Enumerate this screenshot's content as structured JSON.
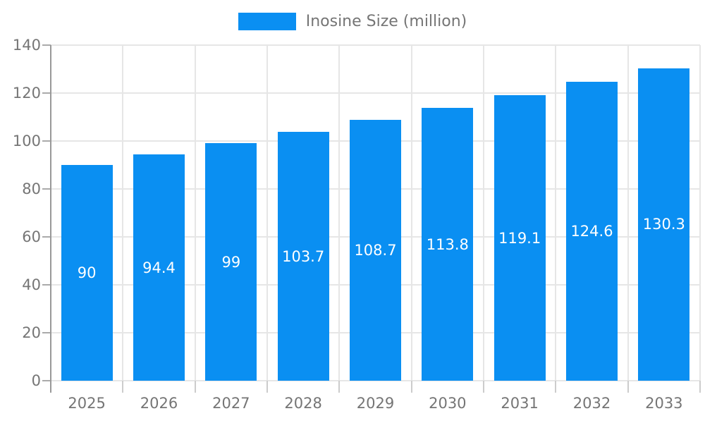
{
  "chart_data": {
    "type": "bar",
    "title": "Inosine Size (million)",
    "categories": [
      "2025",
      "2026",
      "2027",
      "2028",
      "2029",
      "2030",
      "2031",
      "2032",
      "2033"
    ],
    "series": [
      {
        "name": "Inosine Size (million)",
        "values": [
          90,
          94.4,
          99,
          103.7,
          108.7,
          113.8,
          119.1,
          124.6,
          130.3
        ]
      }
    ],
    "value_labels": [
      "90",
      "94.4",
      "99",
      "103.7",
      "108.7",
      "113.8",
      "119.1",
      "124.6",
      "130.3"
    ],
    "xlabel": "",
    "ylabel": "",
    "ylim": [
      0,
      140
    ],
    "yticks": [
      0,
      20,
      40,
      60,
      80,
      100,
      120,
      140
    ],
    "grid": true,
    "legend_position": "top-center",
    "colors": {
      "bar": "#0a8ff2",
      "grid": "#e6e6e6",
      "axis_line": "#999999",
      "y_tick": "#aaaaaa",
      "x_tick": "#cccccc",
      "axis_text": "#757575",
      "value_text": "#ffffff",
      "background": "#ffffff"
    }
  }
}
